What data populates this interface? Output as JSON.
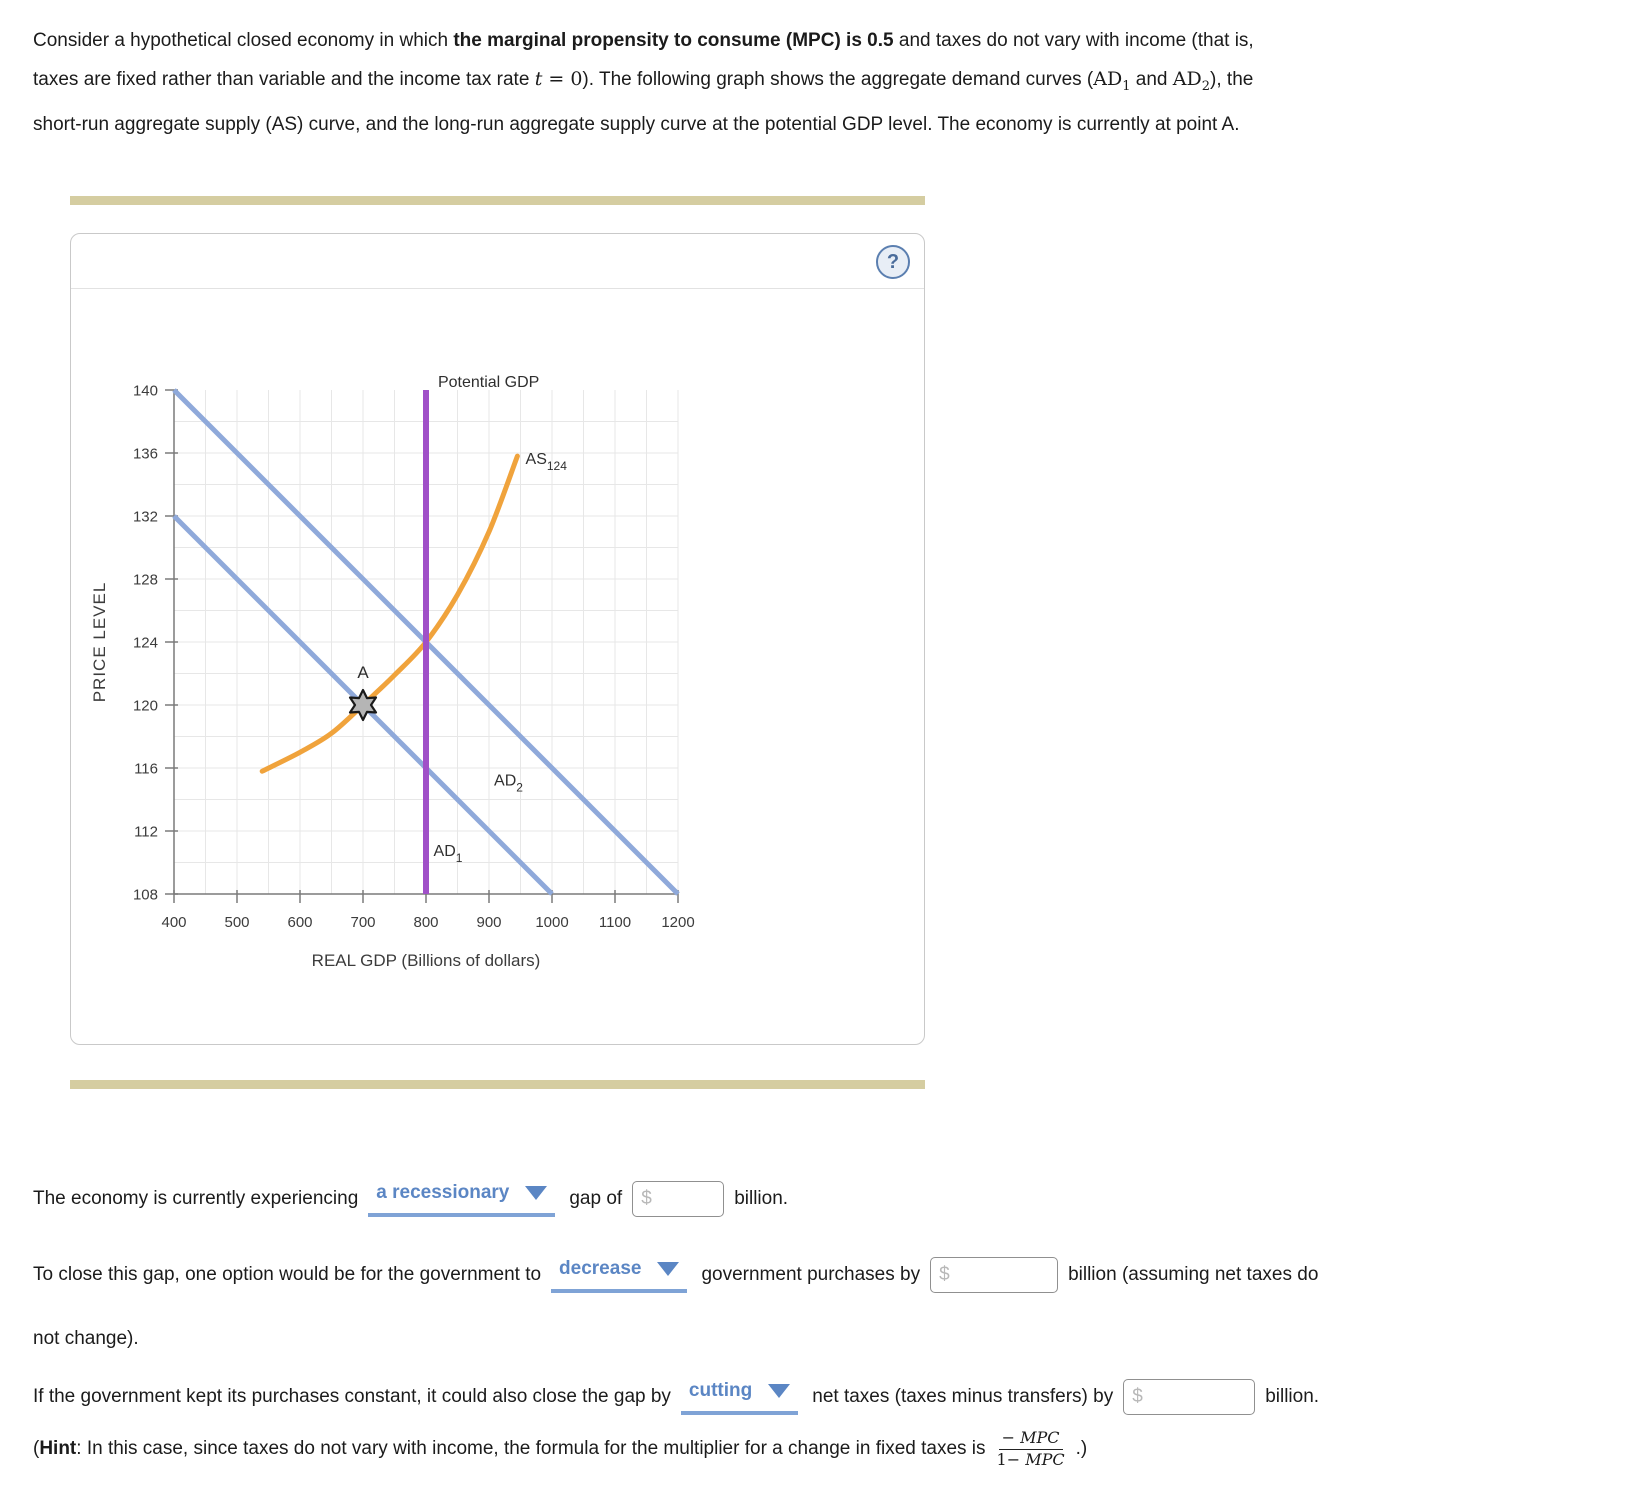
{
  "intro": {
    "l1a": "Consider a hypothetical closed economy in which ",
    "l1b": "the marginal propensity to consume (MPC) is 0.5",
    "l1c": " and taxes do not vary with income (that is,",
    "l2a": "taxes are fixed rather than variable and the income tax rate ",
    "l2t": "t",
    "l2eq": " = 0",
    "l2b": "). The following graph shows the aggregate demand curves (",
    "l2ad1": "AD",
    "l2ad1s": "1",
    "l2and": " and ",
    "l2ad2": "AD",
    "l2ad2s": "2",
    "l2c": "), the",
    "l3": "short-run aggregate supply (AS) curve, and the long-run aggregate supply curve at the potential GDP level. The economy is currently at point A."
  },
  "panel": {
    "help_icon": "?"
  },
  "chart_data": {
    "type": "line",
    "xlabel": "REAL GDP (Billions of dollars)",
    "ylabel": "PRICE LEVEL",
    "xlim": [
      400,
      1200
    ],
    "ylim": [
      108,
      140
    ],
    "x_ticks": [
      400,
      500,
      600,
      700,
      800,
      900,
      1000,
      1100,
      1200
    ],
    "y_ticks": [
      108,
      112,
      116,
      120,
      124,
      128,
      132,
      136,
      140
    ],
    "grid": {
      "x_step": 50,
      "y_step": 2
    },
    "series": [
      {
        "id": "ad1-curve",
        "name": "AD1",
        "kind": "line",
        "color": "#8fa9da",
        "width": 5,
        "points": [
          [
            400,
            132
          ],
          [
            1000,
            108
          ]
        ]
      },
      {
        "id": "ad2-curve",
        "name": "AD2",
        "kind": "line",
        "color": "#8fa9da",
        "width": 5,
        "points": [
          [
            400,
            140
          ],
          [
            1200,
            108
          ]
        ]
      },
      {
        "id": "as-curve",
        "name": "AS124",
        "kind": "curve",
        "color": "#f0a33c",
        "width": 5,
        "points": [
          [
            540,
            115.8
          ],
          [
            600,
            117
          ],
          [
            650,
            118.2
          ],
          [
            700,
            120
          ],
          [
            750,
            121.9
          ],
          [
            800,
            124
          ],
          [
            850,
            127
          ],
          [
            900,
            131
          ],
          [
            945,
            135.8
          ]
        ]
      },
      {
        "id": "potential-gdp-line",
        "name": "Potential GDP",
        "kind": "line",
        "color": "#a050c8",
        "width": 6,
        "points": [
          [
            800,
            108
          ],
          [
            800,
            140
          ]
        ]
      }
    ],
    "point_A": [
      700,
      120
    ],
    "point_A_color": "#b5b5b5",
    "labels": [
      {
        "id": "potential-gdp-label",
        "main": "Potential GDP",
        "sub": "",
        "x": 819,
        "y": 140.2,
        "anchor": "start",
        "size": 16
      },
      {
        "id": "as-label",
        "main": "AS",
        "sub": "124",
        "x": 958,
        "y": 135.3,
        "anchor": "start",
        "size": 16
      },
      {
        "id": "ad1-label",
        "main": "AD",
        "sub": "1",
        "x": 812,
        "y": 110.4,
        "anchor": "start",
        "size": 16
      },
      {
        "id": "ad2-label",
        "main": "AD",
        "sub": "2",
        "x": 908,
        "y": 114.9,
        "anchor": "start",
        "size": 16
      },
      {
        "id": "point-a-label",
        "main": "A",
        "sub": "",
        "x": 700,
        "y": 121.7,
        "anchor": "middle",
        "size": 17
      }
    ]
  },
  "questions": {
    "q1": {
      "pre": "The economy is currently experiencing",
      "dropdown": "a recessionary",
      "mid": "gap of",
      "input_placeholder": "$",
      "post": "billion."
    },
    "q2": {
      "pre": "To close this gap, one option would be for the government to",
      "dropdown": "decrease",
      "mid": "government purchases by",
      "input_placeholder": "$",
      "post": "billion (assuming net taxes do",
      "line2": "not change)."
    },
    "q3": {
      "pre": "If the government kept its purchases constant, it could also close the gap by",
      "dropdown": "cutting",
      "mid": "net taxes (taxes minus transfers) by",
      "input_placeholder": "$",
      "post": "billion.",
      "hint_open": "(",
      "hint_label": "Hint",
      "hint_text": ": In this case, since taxes do not vary with income, the formula for the multiplier for a change in fixed taxes is",
      "frac_num_sign": "− ",
      "frac_var": "MPC",
      "frac_den_pre": "1− ",
      "frac_var2": "MPC",
      "hint_close": ".)"
    }
  },
  "colors": {
    "dropdown_blue": "#5b86c4",
    "underline_blue": "#7fa3d6",
    "ad_blue": "#8fa9da",
    "as_orange": "#f0a33c",
    "potential_purple": "#a050c8",
    "divider_tan": "#d5cda1",
    "star_gray": "#b5b5b5"
  }
}
